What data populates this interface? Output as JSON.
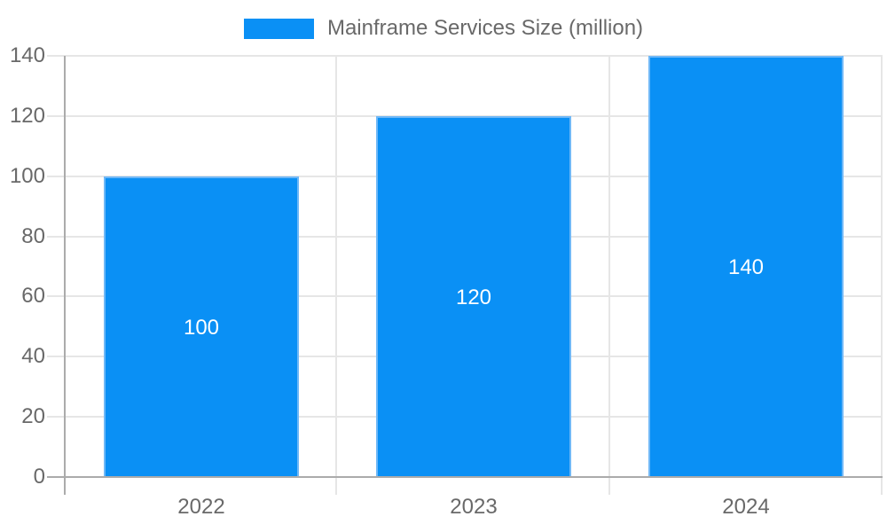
{
  "chart_data": {
    "type": "bar",
    "title": "",
    "legend": {
      "label": "Mainframe Services Size (million)",
      "position": "top"
    },
    "categories": [
      "2022",
      "2023",
      "2024"
    ],
    "series": [
      {
        "name": "Mainframe Services Size (million)",
        "values": [
          100,
          120,
          140
        ]
      }
    ],
    "data_labels": [
      "100",
      "120",
      "140"
    ],
    "xlabel": "",
    "ylabel": "",
    "ylim": [
      0,
      140
    ],
    "yticks": [
      0,
      20,
      40,
      60,
      80,
      100,
      120,
      140
    ],
    "grid": true,
    "legend_position": "top",
    "colors": {
      "bar": "#0A90F5",
      "bar_border": "#6FB8F7",
      "grid": "#E6E6E6",
      "axis": "#ABABAB",
      "text": "#696969",
      "data_label": "#FFFFFF",
      "background": "#FFFFFF"
    }
  }
}
